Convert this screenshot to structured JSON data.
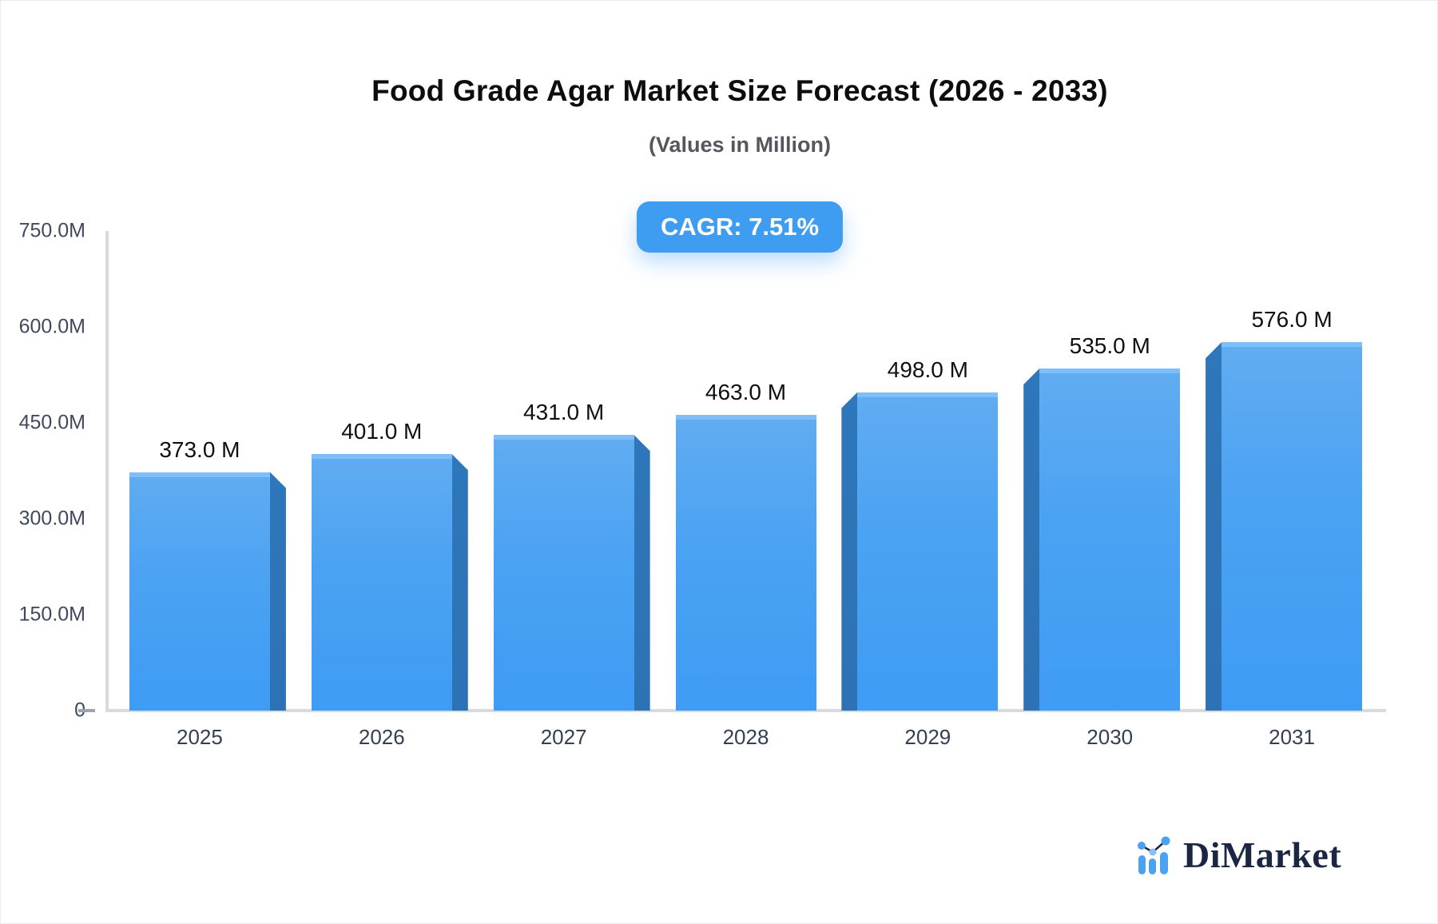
{
  "header": {
    "title": "Food Grade Agar Market Size Forecast (2026 - 2033)",
    "subtitle": "(Values in Million)",
    "cagr_badge": "CAGR: 7.51%"
  },
  "chart_data": {
    "type": "bar",
    "title": "Food Grade Agar Market Size Forecast (2026 - 2033)",
    "subtitle": "(Values in Million)",
    "cagr_percent": 7.51,
    "unit": "Million",
    "categories": [
      "2025",
      "2026",
      "2027",
      "2028",
      "2029",
      "2030",
      "2031"
    ],
    "values": [
      373,
      401,
      431,
      463,
      498,
      535,
      576
    ],
    "value_labels": [
      "373.0 M",
      "401.0 M",
      "431.0 M",
      "463.0 M",
      "498.0 M",
      "535.0 M",
      "576.0 M"
    ],
    "y_axis": {
      "tick_labels": [
        "750.0M",
        "600.0M",
        "450.0M",
        "300.0M",
        "150.0M",
        "0"
      ],
      "tick_values": [
        750,
        600,
        450,
        300,
        150,
        0
      ],
      "min": 0,
      "max": 750
    },
    "grid": "off",
    "legend": "none",
    "style": {
      "bar_color": "#3f9cf4",
      "bar_color_light": "#61acf1",
      "bar_side_color": "#2e77bb",
      "bar_top_highlight": "#7fbef6",
      "axis_color": "#d8dadd",
      "badge_color": "#3e9cf1"
    }
  },
  "footer": {
    "brand": "DiMarket",
    "logo_icon": "bar-chart-logo-icon",
    "brand_color": "#1b2642",
    "brand_accent": "#4aa2f0"
  }
}
